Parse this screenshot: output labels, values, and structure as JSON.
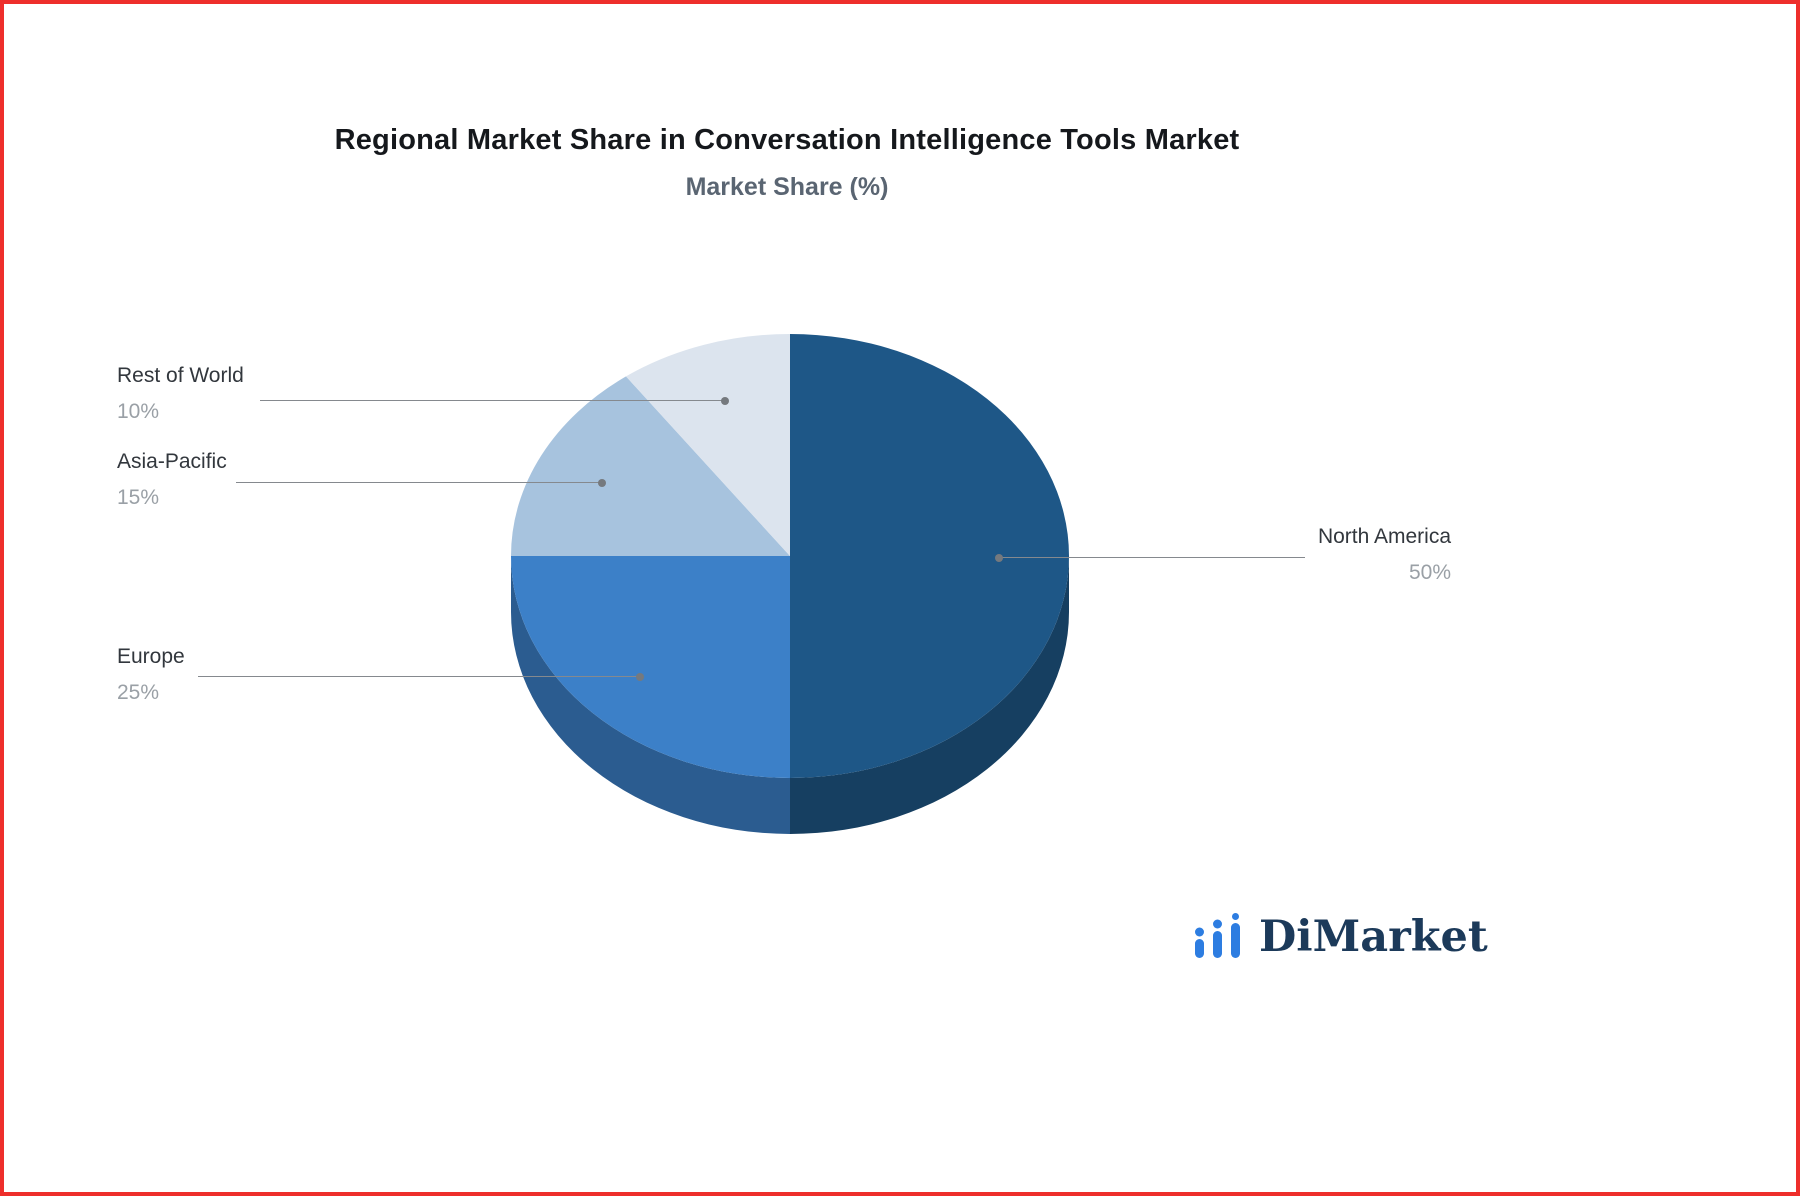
{
  "page": {
    "border_color": "#ee2e2b",
    "background": "#ffffff"
  },
  "header": {
    "title": "Regional Market Share in Conversation Intelligence Tools Market",
    "subtitle": "Market Share (%)"
  },
  "chart_data": {
    "type": "pie",
    "title": "Regional Market Share in Conversation Intelligence Tools Market",
    "subtitle": "Market Share (%)",
    "unit": "%",
    "effect": "3d",
    "start_angle_deg": 0,
    "direction": "clockwise",
    "legend_position": "callout-labels",
    "slices": [
      {
        "label": "North America",
        "value": 50,
        "display": "50%",
        "color": "#1e5787"
      },
      {
        "label": "Europe",
        "value": 25,
        "display": "25%",
        "color": "#3c80c8"
      },
      {
        "label": "Asia-Pacific",
        "value": 15,
        "display": "15%",
        "color": "#a7c3de"
      },
      {
        "label": "Rest of World",
        "value": 10,
        "display": "10%",
        "color": "#dce4ee"
      }
    ]
  },
  "branding": {
    "logo_text": "DiMarket",
    "logo_icon": "bar-chart-icon",
    "text_color": "#1c3a5a",
    "icon_color": "#2d7de1"
  }
}
